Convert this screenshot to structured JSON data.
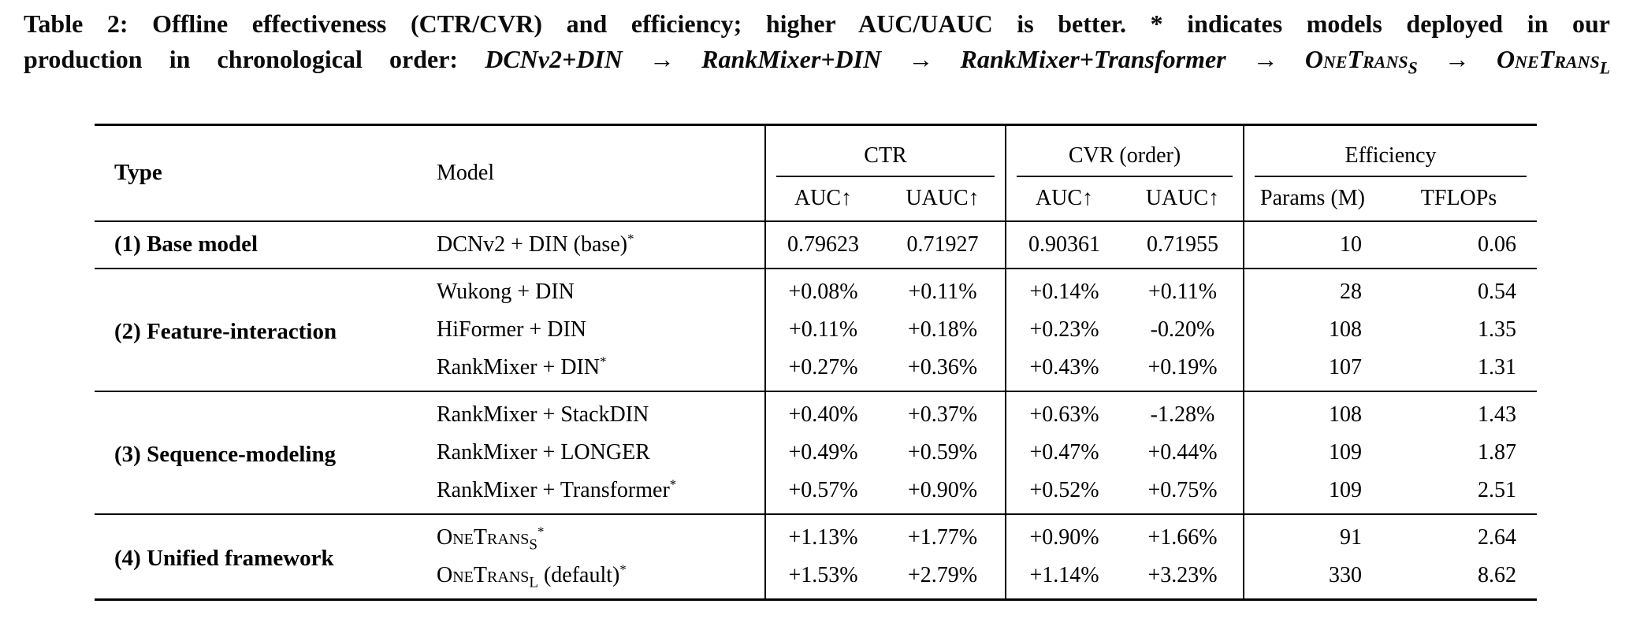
{
  "caption": {
    "line1": "Table 2: Offline effectiveness (CTR/CVR) and efficiency; higher AUC/UAUC is better. * indicates models deployed in our",
    "line2_prefix": "production in chronological order: ",
    "arrow": "→",
    "chain": [
      {
        "text": "DCNv2+DIN",
        "smallcaps": false,
        "sub": ""
      },
      {
        "text": "RankMixer+DIN",
        "smallcaps": false,
        "sub": ""
      },
      {
        "text": "RankMixer+Transformer",
        "smallcaps": false,
        "sub": ""
      },
      {
        "text": "OneTrans",
        "smallcaps": true,
        "sub": "S"
      },
      {
        "text": "OneTrans",
        "smallcaps": true,
        "sub": "L"
      }
    ]
  },
  "table": {
    "col_headers": {
      "type": "Type",
      "model": "Model"
    },
    "groups": [
      {
        "label": "CTR",
        "subcols": [
          "AUC↑",
          "UAUC↑"
        ]
      },
      {
        "label": "CVR (order)",
        "subcols": [
          "AUC↑",
          "UAUC↑"
        ]
      },
      {
        "label": "Efficiency",
        "subcols": [
          "Params (M)",
          "TFLOPs"
        ]
      }
    ],
    "value_col_names": [
      "ctr-auc",
      "ctr-uauc",
      "cvr-auc",
      "cvr-uauc",
      "params-m",
      "tflops"
    ],
    "sections": [
      {
        "type_label": "(1) Base model",
        "rows": [
          {
            "model": {
              "text": "DCNv2 + DIN (base)",
              "smallcaps": false,
              "sub": "",
              "suffix": "",
              "star": true
            },
            "values": [
              "0.79623",
              "0.71927",
              "0.90361",
              "0.71955",
              "10",
              "0.06"
            ]
          }
        ]
      },
      {
        "type_label": "(2) Feature-interaction",
        "rows": [
          {
            "model": {
              "text": "Wukong + DIN",
              "smallcaps": false,
              "sub": "",
              "suffix": "",
              "star": false
            },
            "values": [
              "+0.08%",
              "+0.11%",
              "+0.14%",
              "+0.11%",
              "28",
              "0.54"
            ]
          },
          {
            "model": {
              "text": "HiFormer + DIN",
              "smallcaps": false,
              "sub": "",
              "suffix": "",
              "star": false
            },
            "values": [
              "+0.11%",
              "+0.18%",
              "+0.23%",
              "-0.20%",
              "108",
              "1.35"
            ]
          },
          {
            "model": {
              "text": "RankMixer + DIN",
              "smallcaps": false,
              "sub": "",
              "suffix": "",
              "star": true
            },
            "values": [
              "+0.27%",
              "+0.36%",
              "+0.43%",
              "+0.19%",
              "107",
              "1.31"
            ]
          }
        ]
      },
      {
        "type_label": "(3) Sequence-modeling",
        "rows": [
          {
            "model": {
              "text": "RankMixer + StackDIN",
              "smallcaps": false,
              "sub": "",
              "suffix": "",
              "star": false
            },
            "values": [
              "+0.40%",
              "+0.37%",
              "+0.63%",
              "-1.28%",
              "108",
              "1.43"
            ]
          },
          {
            "model": {
              "text": "RankMixer + LONGER",
              "smallcaps": false,
              "sub": "",
              "suffix": "",
              "star": false
            },
            "values": [
              "+0.49%",
              "+0.59%",
              "+0.47%",
              "+0.44%",
              "109",
              "1.87"
            ]
          },
          {
            "model": {
              "text": "RankMixer + Transformer",
              "smallcaps": false,
              "sub": "",
              "suffix": "",
              "star": true
            },
            "values": [
              "+0.57%",
              "+0.90%",
              "+0.52%",
              "+0.75%",
              "109",
              "2.51"
            ]
          }
        ]
      },
      {
        "type_label": "(4) Unified framework",
        "rows": [
          {
            "model": {
              "text": "OneTrans",
              "smallcaps": true,
              "sub": "S",
              "suffix": "",
              "star": true
            },
            "values": [
              "+1.13%",
              "+1.77%",
              "+0.90%",
              "+1.66%",
              "91",
              "2.64"
            ]
          },
          {
            "model": {
              "text": "OneTrans",
              "smallcaps": true,
              "sub": "L",
              "suffix": " (default)",
              "star": true
            },
            "values": [
              "+1.53%",
              "+2.79%",
              "+1.14%",
              "+3.23%",
              "330",
              "8.62"
            ]
          }
        ]
      }
    ]
  }
}
